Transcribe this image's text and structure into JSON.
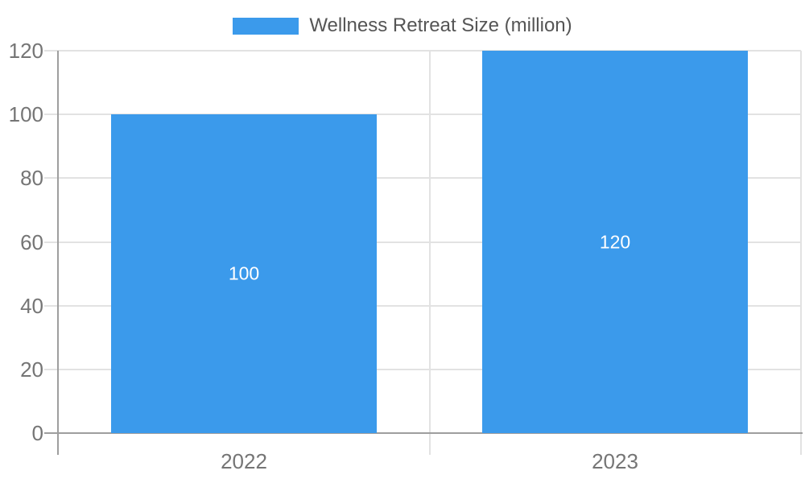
{
  "chart": {
    "colors": {
      "bar": "#3B9AEB",
      "grid": "#E2E2E2",
      "axis": "#9E9E9E",
      "tick_label_text": "#757575",
      "legend_text": "#555555",
      "value_label_text": "#FFFFFF",
      "background": "#FFFFFF"
    }
  },
  "chart_data": {
    "type": "bar",
    "title": "",
    "xlabel": "",
    "ylabel": "",
    "categories": [
      "2022",
      "2023"
    ],
    "series": [
      {
        "name": "Wellness Retreat Size (million)",
        "values": [
          100,
          120
        ]
      }
    ],
    "value_labels": [
      "100",
      "120"
    ],
    "value_label_position": "inside-center",
    "ylim": [
      0,
      120
    ],
    "yticks": [
      0,
      20,
      40,
      60,
      80,
      100,
      120
    ],
    "grid": true,
    "legend_position": "top-center"
  }
}
